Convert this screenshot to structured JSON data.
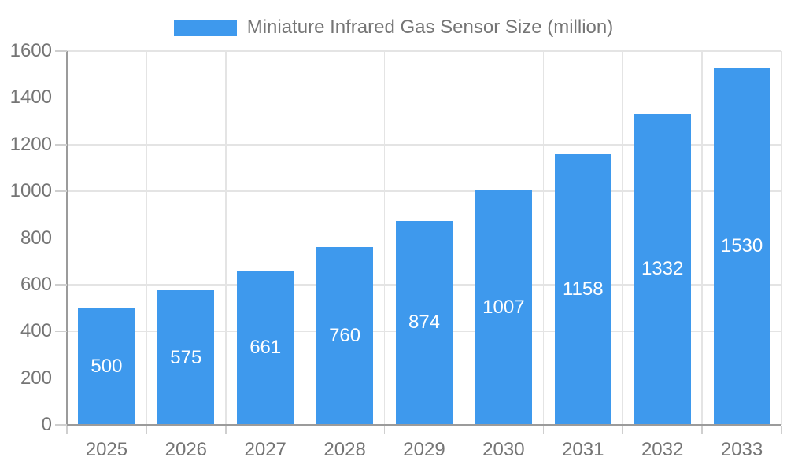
{
  "chart_data": {
    "type": "bar",
    "series_name": "Miniature Infrared Gas Sensor Size (million)",
    "categories": [
      "2025",
      "2026",
      "2027",
      "2028",
      "2029",
      "2030",
      "2031",
      "2032",
      "2033"
    ],
    "values": [
      500,
      575,
      661,
      760,
      874,
      1007,
      1158,
      1332,
      1530
    ],
    "ylim": [
      0,
      1600
    ],
    "yticks": [
      0,
      200,
      400,
      600,
      800,
      1000,
      1200,
      1400,
      1600
    ],
    "grid": true,
    "legend_position": "top",
    "bar_color": "#3E99ED",
    "bar_label_color": "#FFFFFF",
    "axis_text_color": "#757575",
    "axis_line_color": "#9B9B9B",
    "grid_color": "#E4E4E4",
    "tick_color": "#CFCFCF"
  }
}
